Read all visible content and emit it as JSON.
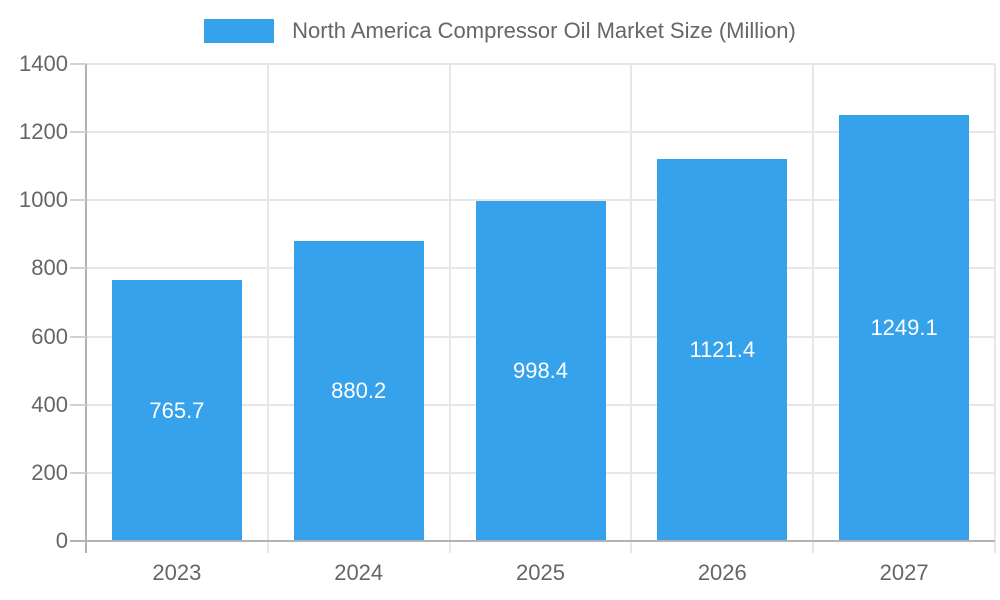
{
  "legend": {
    "label": "North America Compressor Oil Market Size (Million)"
  },
  "chart_data": {
    "type": "bar",
    "categories": [
      "2023",
      "2024",
      "2025",
      "2026",
      "2027"
    ],
    "values": [
      765.7,
      880.2,
      998.4,
      1121.4,
      1249.1
    ],
    "title": "North America Compressor Oil Market Size (Million)",
    "xlabel": "",
    "ylabel": "",
    "ylim": [
      0,
      1400
    ],
    "yticks": [
      0,
      200,
      400,
      600,
      800,
      1000,
      1200,
      1400
    ],
    "grid": true,
    "legend_position": "top",
    "value_labels": "centered-inside-bars"
  },
  "colors": {
    "bar": "#36a2eb",
    "value_label": "#ffffff",
    "text": "#666666",
    "grid": "#e7e7e7",
    "tick": "#d2d2d2",
    "axis": "#b3b3b3",
    "background": "#ffffff"
  }
}
